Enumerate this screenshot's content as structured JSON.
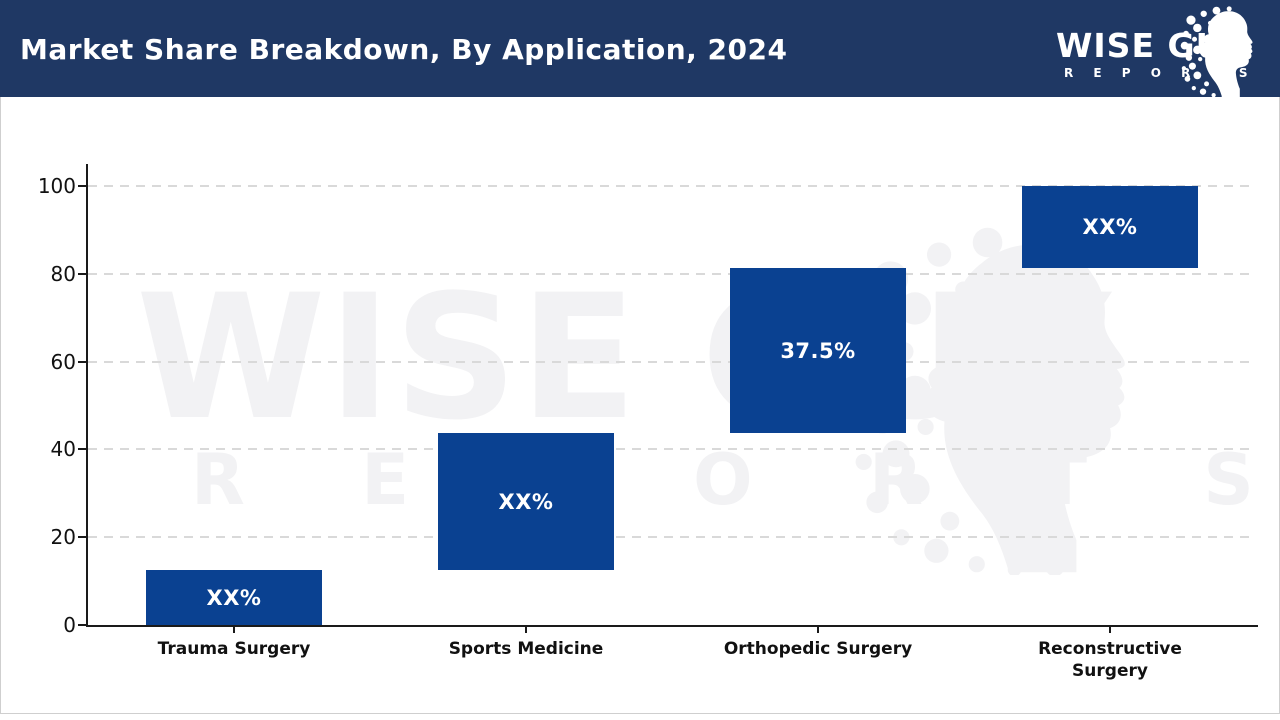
{
  "header": {
    "title": "Market Share Breakdown, By Application, 2024",
    "brand": {
      "name": "WISE GUY",
      "sub": "R E P O R T S"
    }
  },
  "watermark": {
    "line1": "WISE GUY",
    "line2": "R E P O R T S"
  },
  "colors": {
    "header_bg": "#1f3864",
    "bar": "#0a4191",
    "bar_label": "#ffffff",
    "axis": "#1a1a1a",
    "gridline": "#d9d9d9",
    "watermark": "#f2f2f4",
    "frame_border": "#cfcfcf",
    "tick_text": "#111111"
  },
  "chart_data": {
    "type": "bar",
    "subtype": "waterfall",
    "title": "Market Share Breakdown, By Application, 2024",
    "categories": [
      "Trauma Surgery",
      "Sports Medicine",
      "Orthopedic Surgery",
      "Reconstructive Surgery"
    ],
    "values": [
      12.5,
      31.25,
      37.5,
      18.75
    ],
    "cumulative_start": [
      0,
      12.5,
      43.75,
      81.25
    ],
    "cumulative_end": [
      12.5,
      43.75,
      81.25,
      100
    ],
    "bar_labels": [
      "XX%",
      "XX%",
      "37.5%",
      "XX%"
    ],
    "yticks": [
      0,
      20,
      40,
      60,
      80,
      100
    ],
    "ylim": [
      0,
      105
    ],
    "xlabel": "",
    "ylabel": "",
    "grid": "horizontal-dashed",
    "legend": "none",
    "bar_color": "#0a4191",
    "label_color": "#ffffff"
  }
}
